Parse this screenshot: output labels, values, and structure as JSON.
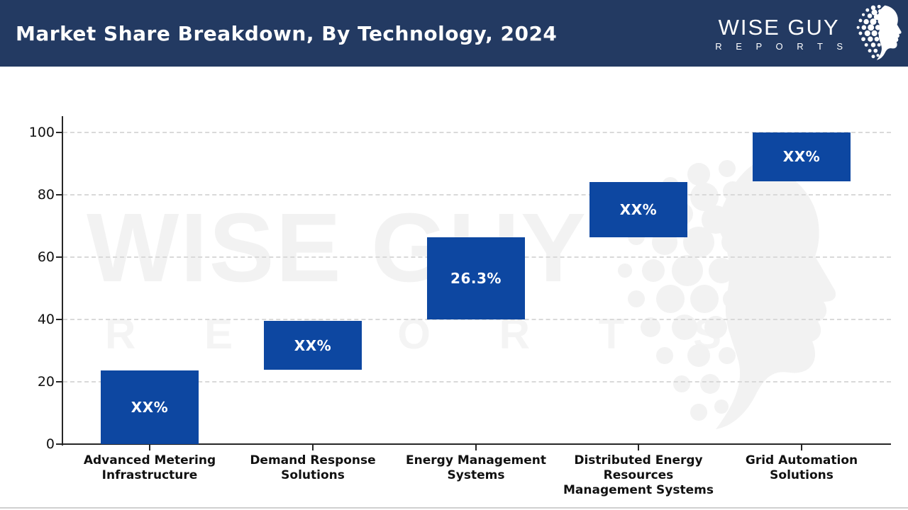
{
  "header": {
    "title": "Market Share Breakdown, By Technology, 2024",
    "logo": {
      "line1": "WISE GUY",
      "line2": "R E P O R T S"
    }
  },
  "watermark": {
    "line1": "WISE GUY",
    "line2": "R E P O R T S"
  },
  "colors": {
    "header_bg": "#233a62",
    "bar": "#0d47a1",
    "bar_label": "#ffffff",
    "grid": "#d9d9d9",
    "axis": "#262626",
    "tick_label": "#111111",
    "watermark": "#f2f2f2",
    "footer_line": "#d0d0d0"
  },
  "chart_data": {
    "type": "bar",
    "subtype": "floating-waterfall",
    "title": "Market Share Breakdown, By Technology, 2024",
    "xlabel": "",
    "ylabel": "",
    "ylim": [
      0,
      100
    ],
    "yticks": [
      0,
      20,
      40,
      60,
      80,
      100
    ],
    "grid": "horizontal-dashed",
    "legend": "none",
    "bars": [
      {
        "category": "Advanced Metering\nInfrastructure",
        "from": 0,
        "to": 23.6,
        "label": "XX%"
      },
      {
        "category": "Demand Response\nSolutions",
        "from": 23.8,
        "to": 39.6,
        "label": "XX%"
      },
      {
        "category": "Energy Management\nSystems",
        "from": 40.0,
        "to": 66.3,
        "label": "26.3%"
      },
      {
        "category": "Distributed Energy\nResources\nManagement Systems",
        "from": 66.3,
        "to": 84.2,
        "label": "XX%"
      },
      {
        "category": "Grid Automation\nSolutions",
        "from": 84.4,
        "to": 100.0,
        "label": "XX%"
      }
    ]
  }
}
